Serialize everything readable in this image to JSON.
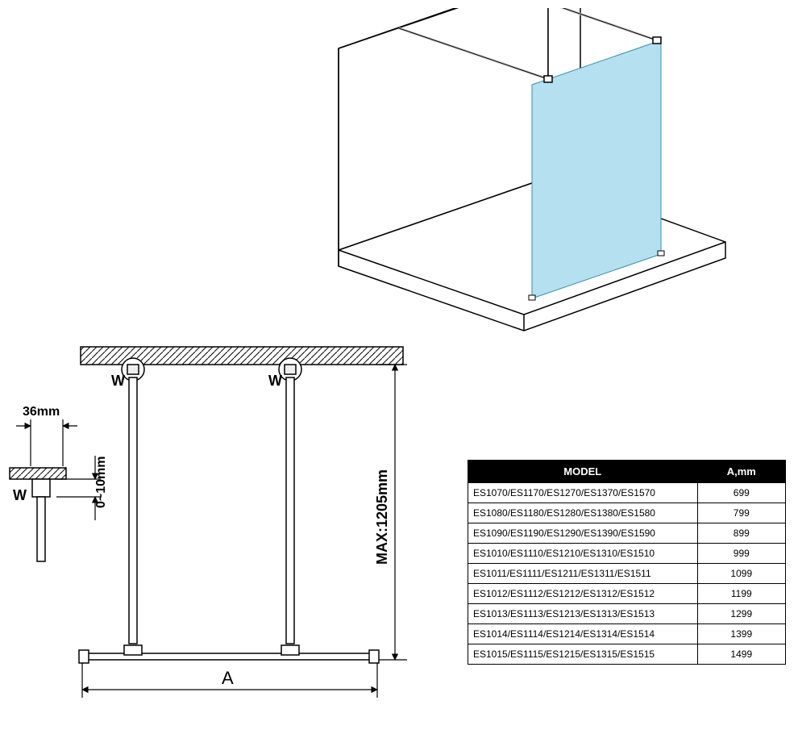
{
  "iso_render": {
    "glass_color": "#b4e0ef",
    "line_color": "#000000",
    "line_width": 1.5
  },
  "schematic": {
    "width_label": "36mm",
    "tolerance_label": "0~10mm",
    "height_label": "MAX:1205mm",
    "base_dim_label": "A",
    "bracket_label": "W",
    "line_color": "#000000"
  },
  "table": {
    "header_model": "MODEL",
    "header_dim": "A,mm",
    "header_bg": "#000000",
    "header_fg": "#ffffff",
    "border_color": "#000000",
    "rows": [
      {
        "model": "ES1070/ES1170/ES1270/ES1370/ES1570",
        "a": "699"
      },
      {
        "model": "ES1080/ES1180/ES1280/ES1380/ES1580",
        "a": "799"
      },
      {
        "model": "ES1090/ES1190/ES1290/ES1390/ES1590",
        "a": "899"
      },
      {
        "model": "ES1010/ES1110/ES1210/ES1310/ES1510",
        "a": "999"
      },
      {
        "model": "ES1011/ES1111/ES1211/ES1311/ES1511",
        "a": "1099"
      },
      {
        "model": "ES1012/ES1112/ES1212/ES1312/ES1512",
        "a": "1199"
      },
      {
        "model": "ES1013/ES1113/ES1213/ES1313/ES1513",
        "a": "1299"
      },
      {
        "model": "ES1014/ES1114/ES1214/ES1314/ES1514",
        "a": "1399"
      },
      {
        "model": "ES1015/ES1115/ES1215/ES1315/ES1515",
        "a": "1499"
      }
    ]
  }
}
